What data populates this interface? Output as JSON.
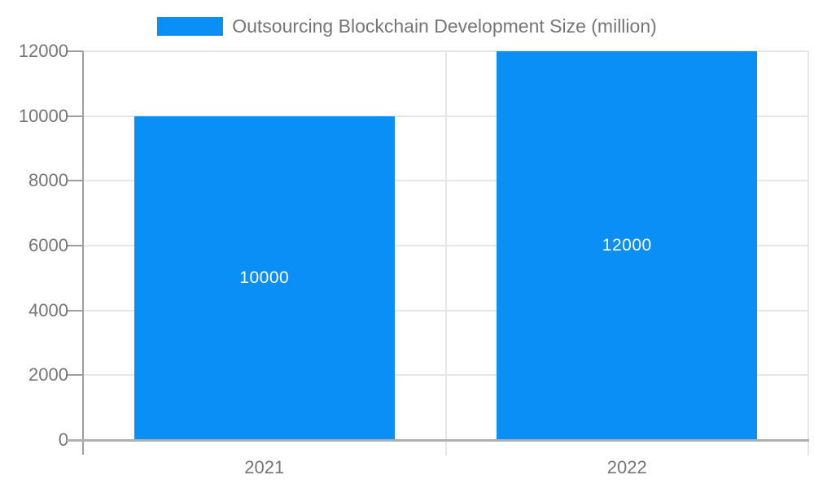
{
  "chart_data": {
    "type": "bar",
    "title": "Outsourcing Blockchain Development Size (million)",
    "categories": [
      "2021",
      "2022"
    ],
    "values": [
      10000,
      12000
    ],
    "value_labels": [
      "10000",
      "12000"
    ],
    "xlabel": "",
    "ylabel": "",
    "ylim": [
      0,
      12000
    ],
    "yticks": [
      0,
      2000,
      4000,
      6000,
      8000,
      10000,
      12000
    ],
    "ytick_labels": [
      "0",
      "2000",
      "4000",
      "6000",
      "8000",
      "10000",
      "12000"
    ],
    "grid": true,
    "legend_position": "top-center",
    "colors": {
      "bar": "#0A8FF7",
      "grid": "#e6e6e6",
      "axis": "#9e9e9e",
      "baseline": "#b0b0b0",
      "tick_label": "#757575",
      "value_label": "#ffffff",
      "background": "#ffffff"
    }
  }
}
